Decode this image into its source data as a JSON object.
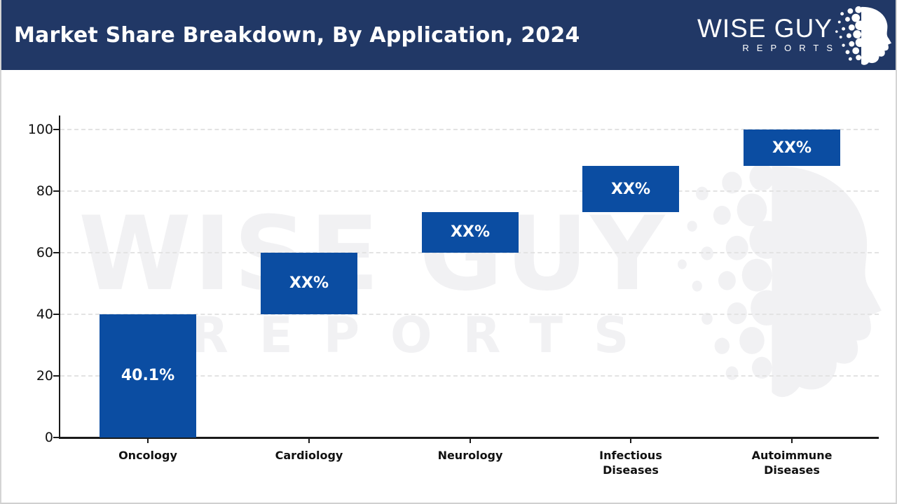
{
  "header": {
    "title": "Market Share Breakdown, By Application, 2024",
    "logo": {
      "line1": "WISE GUY",
      "line2": "REPORTS"
    }
  },
  "watermark": {
    "line1": "WISE GUY",
    "line2": "REPORTS"
  },
  "colors": {
    "header_bg": "#213866",
    "bar": "#0b4da2",
    "grid": "#e3e3e3",
    "axis": "#1a1a1a",
    "watermark": "#f1f1f3",
    "bar_label": "#ffffff"
  },
  "chart_data": {
    "type": "bar",
    "subtype": "waterfall",
    "title": "Market Share Breakdown, By Application, 2024",
    "categories": [
      [
        "Oncology"
      ],
      [
        "Cardiology"
      ],
      [
        "Neurology"
      ],
      [
        "Infectious",
        "Diseases"
      ],
      [
        "Autoimmune",
        "Diseases"
      ]
    ],
    "segments": [
      {
        "category": "Oncology",
        "start": 0,
        "end": 40.1,
        "label": "40.1%"
      },
      {
        "category": "Cardiology",
        "start": 40.1,
        "end": 60.1,
        "label": "XX%"
      },
      {
        "category": "Neurology",
        "start": 60.1,
        "end": 73.1,
        "label": "XX%"
      },
      {
        "category": "Infectious Diseases",
        "start": 73.1,
        "end": 88.1,
        "label": "XX%"
      },
      {
        "category": "Autoimmune Diseases",
        "start": 88.1,
        "end": 100,
        "label": "XX%"
      }
    ],
    "ylim": [
      0,
      100
    ],
    "yticks": [
      0,
      20,
      40,
      60,
      80,
      100
    ],
    "grid": "dashed-horizontal",
    "legend": "none",
    "xlabel": "",
    "ylabel": ""
  }
}
